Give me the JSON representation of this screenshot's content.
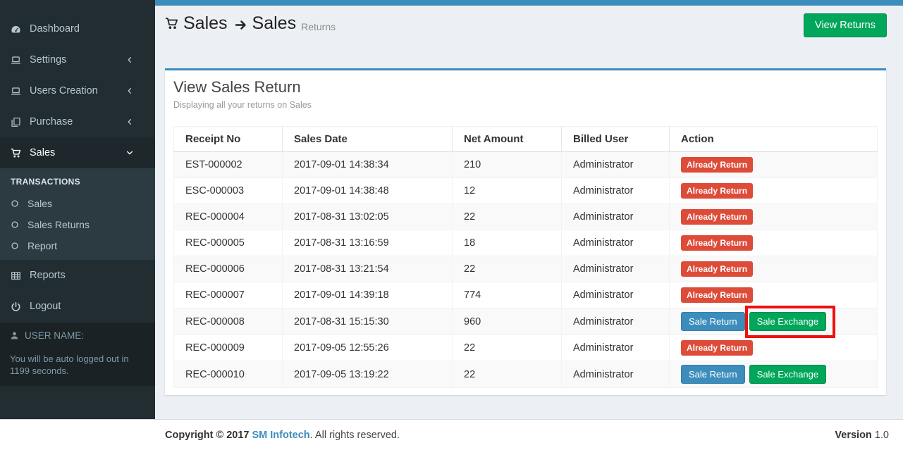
{
  "colors": {
    "accent_blue": "#3c8dbc",
    "success_green": "#00a65a",
    "danger_red": "#dd4b39",
    "annotation_red": "#ee0f0f",
    "sidebar_bg": "#222d32",
    "sidebar_active_bg": "#1e282c",
    "submenu_bg": "#2c3b41",
    "user_panel_bg": "#1a2226",
    "content_bg": "#ecf0f5"
  },
  "sidebar": {
    "items": [
      {
        "label": "Dashboard",
        "icon": "dashboard-icon",
        "chevron": null,
        "active": false
      },
      {
        "label": "Settings",
        "icon": "laptop-icon",
        "chevron": "left",
        "active": false
      },
      {
        "label": "Users Creation",
        "icon": "laptop-icon",
        "chevron": "left",
        "active": false
      },
      {
        "label": "Purchase",
        "icon": "copy-icon",
        "chevron": "left",
        "active": false
      },
      {
        "label": "Sales",
        "icon": "cart-icon",
        "chevron": "down",
        "active": true
      }
    ],
    "submenu_header": "TRANSACTIONS",
    "submenu": [
      {
        "label": "Sales",
        "icon": "circle-icon"
      },
      {
        "label": "Sales Returns",
        "icon": "circle-icon"
      },
      {
        "label": "Report",
        "icon": "circle-icon"
      }
    ],
    "items_bottom": [
      {
        "label": "Reports",
        "icon": "table-icon",
        "chevron": null,
        "active": false
      },
      {
        "label": "Logout",
        "icon": "power-icon",
        "chevron": null,
        "active": false
      }
    ],
    "user_label": "USER NAME:",
    "auto_logout_text": "You will be auto logged out in 1199 seconds."
  },
  "header": {
    "breadcrumb_primary": "Sales",
    "breadcrumb_secondary": "Sales",
    "breadcrumb_suffix": "Returns",
    "view_returns_button": "View Returns"
  },
  "panel": {
    "title": "View Sales Return",
    "subtitle": "Displaying all your returns on Sales"
  },
  "table": {
    "columns": [
      "Receipt No",
      "Sales Date",
      "Net Amount",
      "Billed User",
      "Action"
    ],
    "action_labels": {
      "already": "Already Return",
      "sale_return": "Sale Return",
      "sale_exchange": "Sale Exchange"
    },
    "rows": [
      {
        "receipt_no": "EST-000002",
        "sales_date": "2017-09-01 14:38:34",
        "net_amount": "210",
        "billed_user": "Administrator",
        "actions": [
          "already"
        ],
        "highlight": null
      },
      {
        "receipt_no": "ESC-000003",
        "sales_date": "2017-09-01 14:38:48",
        "net_amount": "12",
        "billed_user": "Administrator",
        "actions": [
          "already"
        ],
        "highlight": null
      },
      {
        "receipt_no": "REC-000004",
        "sales_date": "2017-08-31 13:02:05",
        "net_amount": "22",
        "billed_user": "Administrator",
        "actions": [
          "already"
        ],
        "highlight": null
      },
      {
        "receipt_no": "REC-000005",
        "sales_date": "2017-08-31 13:16:59",
        "net_amount": "18",
        "billed_user": "Administrator",
        "actions": [
          "already"
        ],
        "highlight": null
      },
      {
        "receipt_no": "REC-000006",
        "sales_date": "2017-08-31 13:21:54",
        "net_amount": "22",
        "billed_user": "Administrator",
        "actions": [
          "already"
        ],
        "highlight": null
      },
      {
        "receipt_no": "REC-000007",
        "sales_date": "2017-09-01 14:39:18",
        "net_amount": "774",
        "billed_user": "Administrator",
        "actions": [
          "already"
        ],
        "highlight": null
      },
      {
        "receipt_no": "REC-000008",
        "sales_date": "2017-08-31 15:15:30",
        "net_amount": "960",
        "billed_user": "Administrator",
        "actions": [
          "sale_return",
          "sale_exchange"
        ],
        "highlight": "sale_exchange"
      },
      {
        "receipt_no": "REC-000009",
        "sales_date": "2017-09-05 12:55:26",
        "net_amount": "22",
        "billed_user": "Administrator",
        "actions": [
          "already"
        ],
        "highlight": null
      },
      {
        "receipt_no": "REC-000010",
        "sales_date": "2017-09-05 13:19:22",
        "net_amount": "22",
        "billed_user": "Administrator",
        "actions": [
          "sale_return",
          "sale_exchange"
        ],
        "highlight": null
      }
    ]
  },
  "footer": {
    "copyright_prefix": "Copyright © 2017 ",
    "company": "SM Infotech",
    "copyright_suffix": ". All rights reserved.",
    "version_label": "Version",
    "version_value": "1.0"
  }
}
